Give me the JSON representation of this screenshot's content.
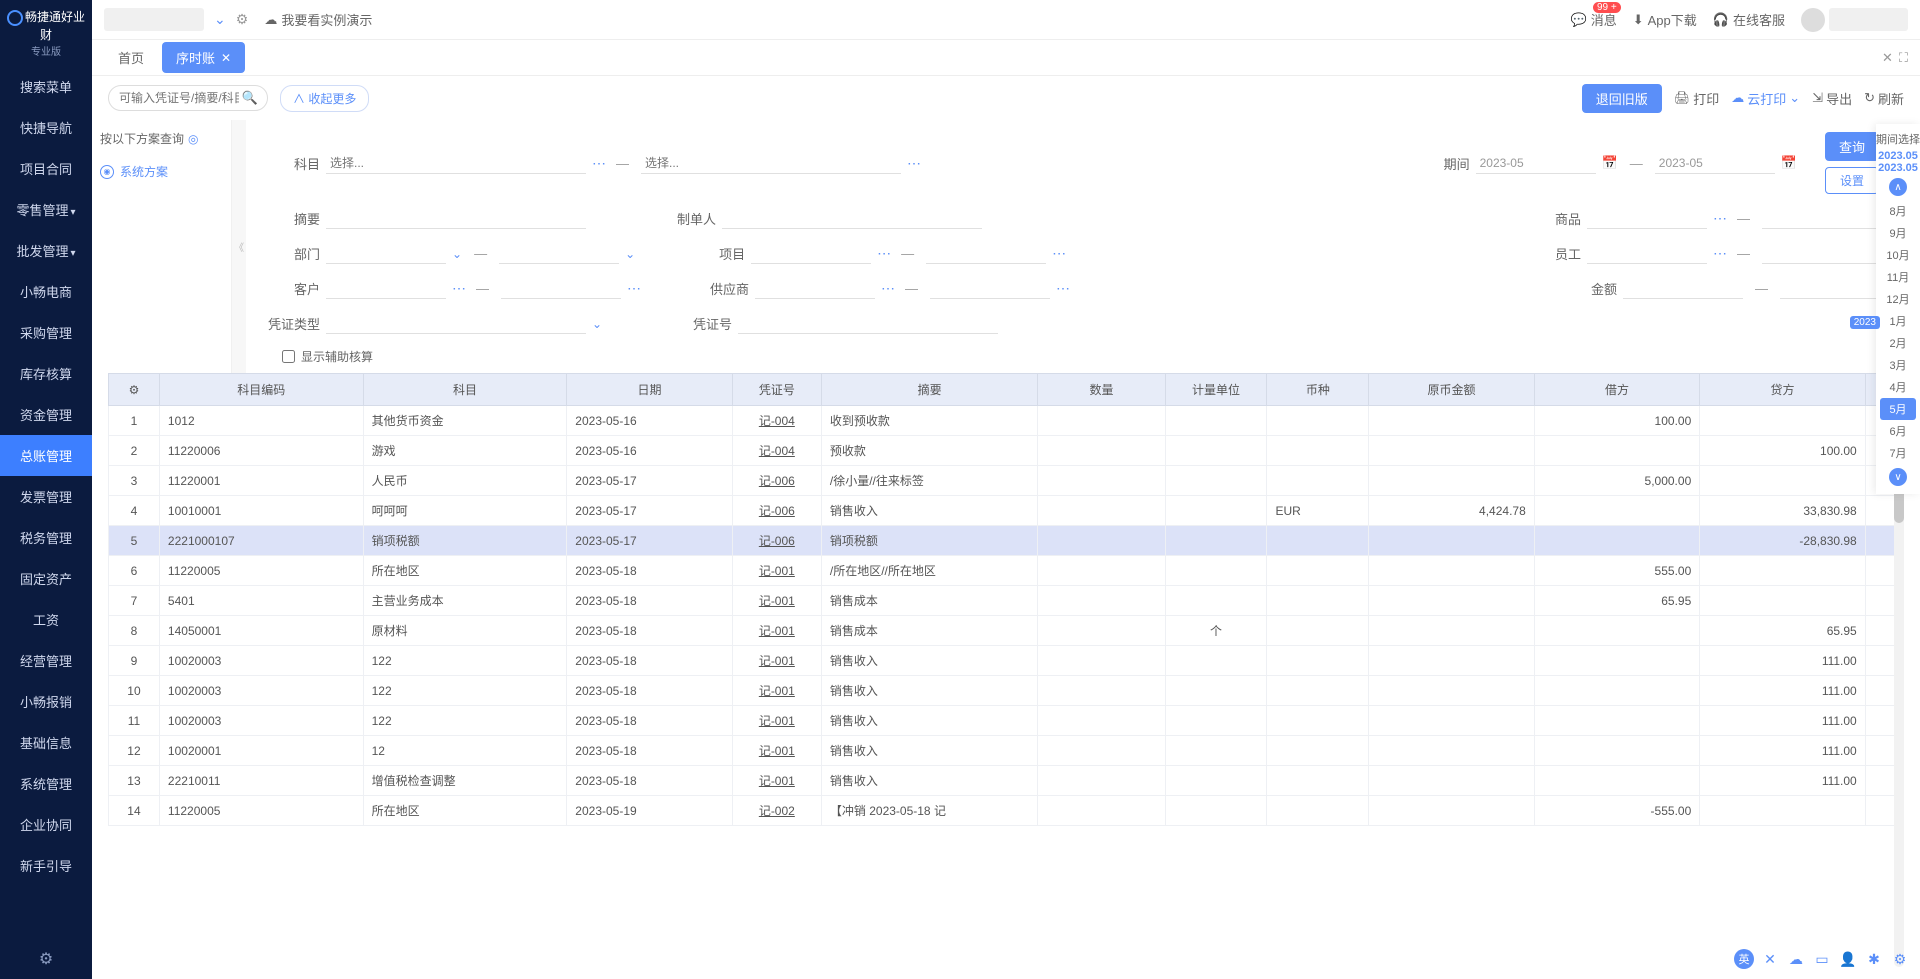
{
  "brand": {
    "name": "畅捷通好业财",
    "edition": "专业版"
  },
  "sidebar": {
    "items": [
      {
        "label": "搜索菜单",
        "expand": false
      },
      {
        "label": "快捷导航",
        "expand": false
      },
      {
        "label": "项目合同",
        "expand": false
      },
      {
        "label": "零售管理",
        "expand": true
      },
      {
        "label": "批发管理",
        "expand": true
      },
      {
        "label": "小畅电商",
        "expand": false
      },
      {
        "label": "采购管理",
        "expand": false
      },
      {
        "label": "库存核算",
        "expand": false
      },
      {
        "label": "资金管理",
        "expand": false
      },
      {
        "label": "总账管理",
        "expand": false,
        "active": true
      },
      {
        "label": "发票管理",
        "expand": false
      },
      {
        "label": "税务管理",
        "expand": false
      },
      {
        "label": "固定资产",
        "expand": false
      },
      {
        "label": "工资",
        "expand": false
      },
      {
        "label": "经营管理",
        "expand": false
      },
      {
        "label": "小畅报销",
        "expand": false
      },
      {
        "label": "基础信息",
        "expand": false
      },
      {
        "label": "系统管理",
        "expand": false
      },
      {
        "label": "企业协同",
        "expand": false
      },
      {
        "label": "新手引导",
        "expand": false
      }
    ]
  },
  "topbar": {
    "demo": "我要看实例演示",
    "msg": "消息",
    "msg_badge": "99 +",
    "download": "App下载",
    "service": "在线客服"
  },
  "tabs": {
    "home": "首页",
    "active": "序时账"
  },
  "toolbar": {
    "search_ph": "可输入凭证号/摘要/科目/金额",
    "collapse": "∧ 收起更多",
    "back_old": "退回旧版",
    "print": "打印",
    "cloud_print": "云打印",
    "export": "导出",
    "refresh": "刷新"
  },
  "filter_side": {
    "title": "按以下方案查询",
    "scheme": "系统方案"
  },
  "filters": {
    "subject": "科目",
    "subject_ph": "选择...",
    "period": "期间",
    "period_from": "2023-05",
    "period_to": "2023-05",
    "summary": "摘要",
    "preparer": "制单人",
    "product": "商品",
    "dept": "部门",
    "project": "项目",
    "employee": "员工",
    "customer": "客户",
    "supplier": "供应商",
    "amount": "金额",
    "voucher_type": "凭证类型",
    "voucher_no": "凭证号",
    "show_aux": "显示辅助核算",
    "query": "查询",
    "settings": "设置"
  },
  "columns": {
    "code": "科目编码",
    "subject": "科目",
    "date": "日期",
    "voucher": "凭证号",
    "summary": "摘要",
    "qty": "数量",
    "unit": "计量单位",
    "currency": "币种",
    "orig": "原币金额",
    "debit": "借方",
    "credit": "贷方"
  },
  "rows": [
    {
      "idx": "1",
      "code": "1012",
      "subject": "其他货币资金",
      "date": "2023-05-16",
      "voucher": "记-004",
      "summary": "收到预收款",
      "unit": "",
      "currency": "",
      "orig": "",
      "debit": "100.00",
      "credit": ""
    },
    {
      "idx": "2",
      "code": "11220006",
      "subject": "游戏",
      "date": "2023-05-16",
      "voucher": "记-004",
      "summary": "预收款",
      "unit": "",
      "currency": "",
      "orig": "",
      "debit": "",
      "credit": "100.00"
    },
    {
      "idx": "3",
      "code": "11220001",
      "subject": "人民币",
      "date": "2023-05-17",
      "voucher": "记-006",
      "summary": "/徐小量//往来标签",
      "unit": "",
      "currency": "",
      "orig": "",
      "debit": "5,000.00",
      "credit": ""
    },
    {
      "idx": "4",
      "code": "10010001",
      "subject": "呵呵呵",
      "date": "2023-05-17",
      "voucher": "记-006",
      "summary": "销售收入",
      "unit": "",
      "currency": "EUR",
      "orig": "4,424.78",
      "debit": "",
      "credit": "33,830.98"
    },
    {
      "idx": "5",
      "code": "2221000107",
      "subject": "销项税额",
      "date": "2023-05-17",
      "voucher": "记-006",
      "summary": "销项税额",
      "unit": "",
      "currency": "",
      "orig": "",
      "debit": "",
      "credit": "-28,830.98",
      "hl": true,
      "neg": true
    },
    {
      "idx": "6",
      "code": "11220005",
      "subject": "所在地区",
      "date": "2023-05-18",
      "voucher": "记-001",
      "summary": "/所在地区//所在地区",
      "unit": "",
      "currency": "",
      "orig": "",
      "debit": "555.00",
      "credit": ""
    },
    {
      "idx": "7",
      "code": "5401",
      "subject": "主营业务成本",
      "date": "2023-05-18",
      "voucher": "记-001",
      "summary": "销售成本",
      "unit": "",
      "currency": "",
      "orig": "",
      "debit": "65.95",
      "credit": ""
    },
    {
      "idx": "8",
      "code": "14050001",
      "subject": "原材料",
      "date": "2023-05-18",
      "voucher": "记-001",
      "summary": "销售成本",
      "unit": "个",
      "currency": "",
      "orig": "",
      "debit": "",
      "credit": "65.95"
    },
    {
      "idx": "9",
      "code": "10020003",
      "subject": "122",
      "date": "2023-05-18",
      "voucher": "记-001",
      "summary": "销售收入",
      "unit": "",
      "currency": "",
      "orig": "",
      "debit": "",
      "credit": "111.00"
    },
    {
      "idx": "10",
      "code": "10020003",
      "subject": "122",
      "date": "2023-05-18",
      "voucher": "记-001",
      "summary": "销售收入",
      "unit": "",
      "currency": "",
      "orig": "",
      "debit": "",
      "credit": "111.00"
    },
    {
      "idx": "11",
      "code": "10020003",
      "subject": "122",
      "date": "2023-05-18",
      "voucher": "记-001",
      "summary": "销售收入",
      "unit": "",
      "currency": "",
      "orig": "",
      "debit": "",
      "credit": "111.00"
    },
    {
      "idx": "12",
      "code": "10020001",
      "subject": "12",
      "date": "2023-05-18",
      "voucher": "记-001",
      "summary": "销售收入",
      "unit": "",
      "currency": "",
      "orig": "",
      "debit": "",
      "credit": "111.00"
    },
    {
      "idx": "13",
      "code": "22210011",
      "subject": "增值税检查调整",
      "date": "2023-05-18",
      "voucher": "记-001",
      "summary": "销售收入",
      "unit": "",
      "currency": "",
      "orig": "",
      "debit": "",
      "credit": "111.00"
    },
    {
      "idx": "14",
      "code": "11220005",
      "subject": "所在地区",
      "date": "2023-05-19",
      "voucher": "记-002",
      "summary": "【冲销 2023-05-18 记",
      "unit": "",
      "currency": "",
      "orig": "",
      "debit": "-555.00",
      "credit": "",
      "neg_debit": true
    }
  ],
  "period_picker": {
    "title": "期间选择",
    "from": "2023.05",
    "to": "2023.05",
    "year": "2023",
    "months": [
      "8月",
      "9月",
      "10月",
      "11月",
      "12月",
      "1月",
      "2月",
      "3月",
      "4月",
      "5月",
      "6月",
      "7月"
    ],
    "active_month": "5月"
  },
  "ime": "英"
}
